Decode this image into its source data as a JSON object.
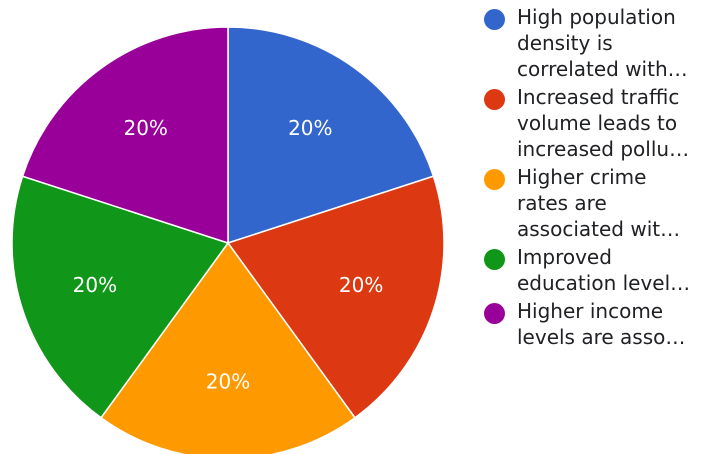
{
  "chart_data": {
    "type": "pie",
    "slices": [
      {
        "label": "High population density is correlated with…",
        "lines": [
          "High population",
          "density is",
          "correlated with…"
        ],
        "value": 20,
        "display": "20%",
        "color": "#3366cc"
      },
      {
        "label": "Increased traffic volume leads to increased pollu…",
        "lines": [
          "Increased traffic",
          "volume leads to",
          "increased pollu…"
        ],
        "value": 20,
        "display": "20%",
        "color": "#dc3912"
      },
      {
        "label": "Higher crime rates are associated wit…",
        "lines": [
          "Higher crime",
          "rates are",
          "associated wit…"
        ],
        "value": 20,
        "display": "20%",
        "color": "#ff9900"
      },
      {
        "label": "Improved education level…",
        "lines": [
          "Improved",
          "education level…"
        ],
        "value": 20,
        "display": "20%",
        "color": "#109618"
      },
      {
        "label": "Higher income levels are asso…",
        "lines": [
          "Higher income",
          "levels are asso…"
        ],
        "value": 20,
        "display": "20%",
        "color": "#990099"
      }
    ],
    "legend": "right"
  }
}
